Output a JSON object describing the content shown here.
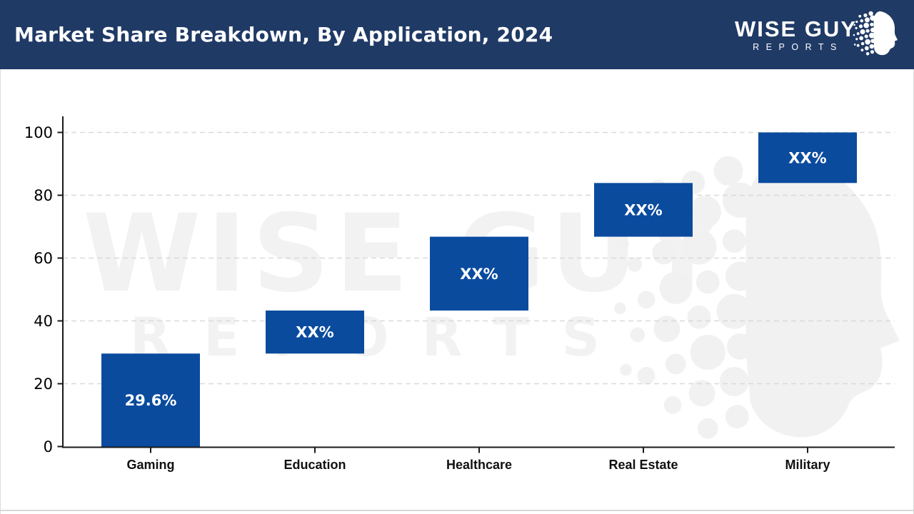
{
  "header": {
    "title": "Market Share Breakdown, By Application, 2024",
    "logo": {
      "line1": "WISE GUY",
      "line2": "REPORTS"
    }
  },
  "watermark": {
    "line1": "WISE GUY",
    "line2": "REPORTS"
  },
  "colors": {
    "header_bg": "#203a66",
    "bar": "#0a4b9e",
    "bar_label": "#ffffff",
    "grid": "#d9d9d9",
    "axis": "#1a1a1a",
    "tick_label": "#000000",
    "watermark": "#f2f2f2"
  },
  "chart_data": {
    "type": "bar",
    "subtype": "waterfall-floating-bars",
    "title": "Market Share Breakdown, By Application, 2024",
    "xlabel": "",
    "ylabel": "",
    "categories": [
      "Gaming",
      "Education",
      "Healthcare",
      "Real Estate",
      "Military"
    ],
    "segments": [
      {
        "category": "Gaming",
        "start": 0,
        "end": 29.6,
        "label": "29.6%"
      },
      {
        "category": "Education",
        "start": 29.6,
        "end": 43.3,
        "label": "XX%"
      },
      {
        "category": "Healthcare",
        "start": 43.3,
        "end": 66.8,
        "label": "XX%"
      },
      {
        "category": "Real Estate",
        "start": 66.8,
        "end": 83.9,
        "label": "XX%"
      },
      {
        "category": "Military",
        "start": 83.9,
        "end": 100,
        "label": "XX%"
      }
    ],
    "ylim": [
      0,
      100
    ],
    "yticks": [
      0,
      20,
      40,
      60,
      80,
      100
    ],
    "grid": "horizontal-dashed",
    "legend": "none"
  }
}
